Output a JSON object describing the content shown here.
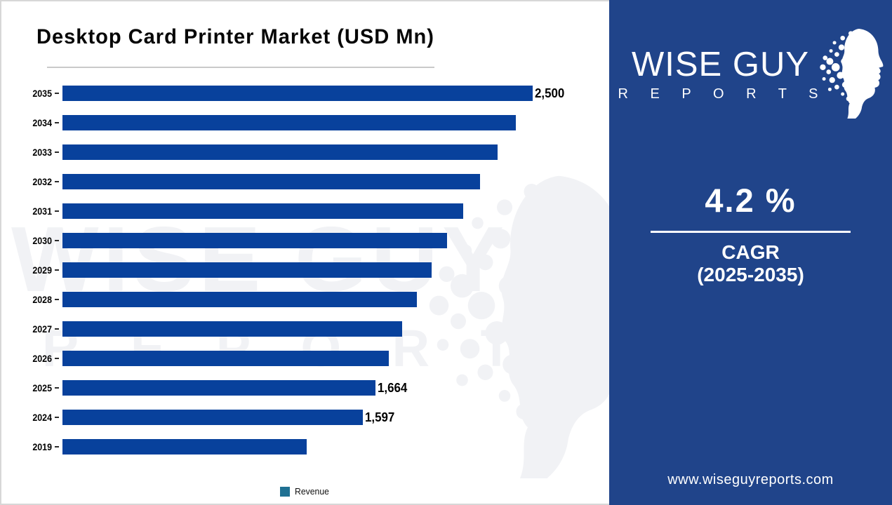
{
  "chart_data": {
    "type": "bar",
    "orientation": "horizontal",
    "title": "Desktop Card Printer Market (USD Mn)",
    "categories": [
      "2035",
      "2034",
      "2033",
      "2032",
      "2031",
      "2030",
      "2029",
      "2028",
      "2027",
      "2026",
      "2025",
      "2024",
      "2019"
    ],
    "values": [
      2500,
      2410,
      2313,
      2219,
      2130,
      2044,
      1962,
      1883,
      1807,
      1734,
      1664,
      1597,
      1300
    ],
    "value_labels": {
      "2035": "2,500",
      "2025": "1,664",
      "2024": "1,597"
    },
    "xlim": [
      0,
      2600
    ],
    "grid": false,
    "bar_color": "#08419c",
    "legend_position": "bottom",
    "legend": [
      {
        "label": "Revenue",
        "color": "#1f7092"
      }
    ]
  },
  "watermark": {
    "line1": "WISE GUY",
    "line2": "R E P O R T S"
  },
  "separator_color": "#c9c9c9",
  "sidebar": {
    "bg_color": "#20448a",
    "brand_line1": "WISE GUY",
    "brand_line2": "R E P O R T S",
    "cagr_value": "4.2 %",
    "cagr_label": "CAGR",
    "cagr_range": "(2025-2035)",
    "website": "www.wiseguyreports.com"
  }
}
